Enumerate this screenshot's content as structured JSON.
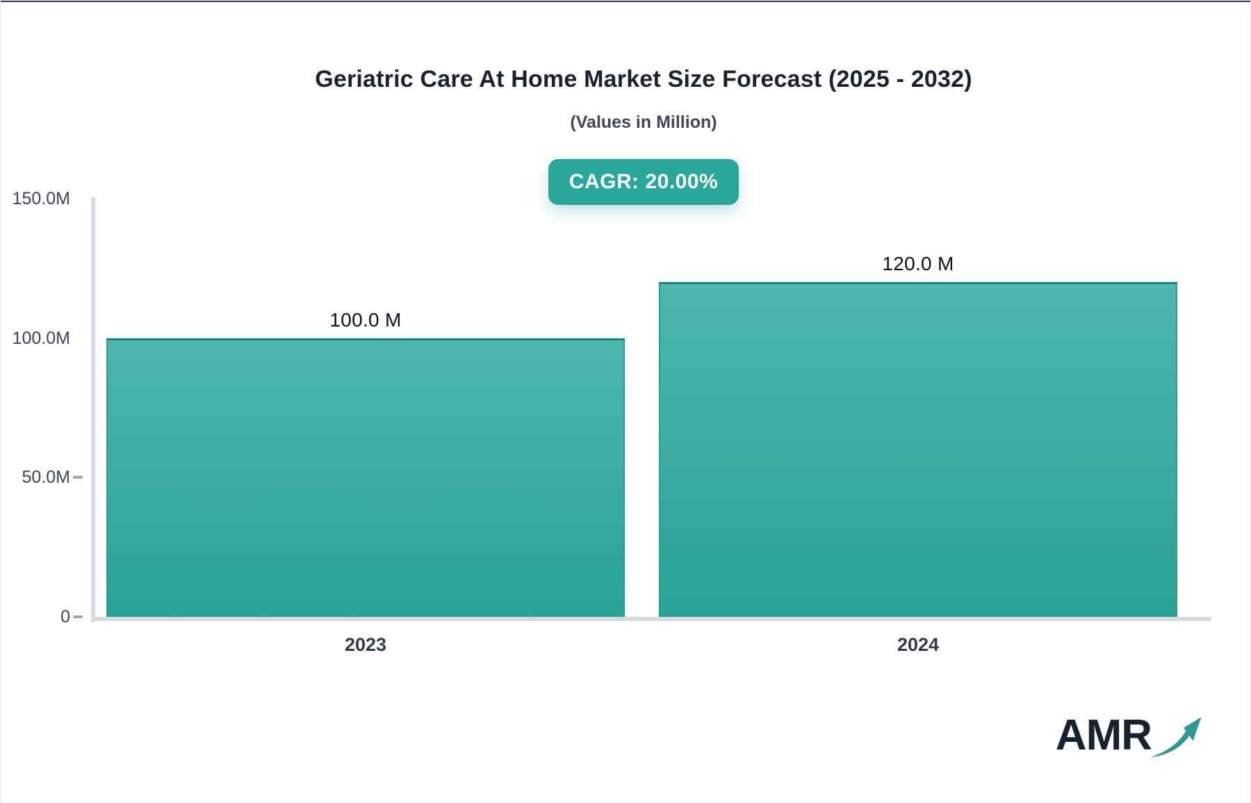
{
  "header": {
    "title": "Geriatric Care At Home Market Size Forecast (2025 - 2032)",
    "subtitle": "(Values in Million)",
    "cagr_badge": "CAGR: 20.00%"
  },
  "chart_data": {
    "type": "bar",
    "title": "Geriatric Care At Home Market Size Forecast (2025 - 2032)",
    "subtitle": "(Values in Million)",
    "cagr_text": "CAGR: 20.00%",
    "unit": "Million",
    "categories": [
      "2023",
      "2024"
    ],
    "values": [
      100.0,
      120.0
    ],
    "value_labels": [
      "100.0 M",
      "120.0 M"
    ],
    "ylim": [
      0,
      150
    ],
    "yticks": [
      {
        "label": "150.0M",
        "value": 150,
        "tick_mark": false
      },
      {
        "label": "100.0M",
        "value": 100,
        "tick_mark": false
      },
      {
        "label": "50.0M",
        "value": 50,
        "tick_mark": true
      },
      {
        "label": "0",
        "value": 0,
        "tick_mark": true
      }
    ],
    "grid": false,
    "legend": false,
    "colors": {
      "accent_teal": "#2aa79b",
      "bar_gradient_top": "#4db7ac",
      "bar_gradient_bottom": "#29a296",
      "bar_border_top": "#1a8478",
      "bar_border_side": "#2f9c90",
      "axis_line": "#d7dae0",
      "tick_mark": "#9fa6b2"
    }
  },
  "logo": {
    "text": "AMR",
    "text_color": "#16222e",
    "arrow_color": "#2d9a8f"
  }
}
